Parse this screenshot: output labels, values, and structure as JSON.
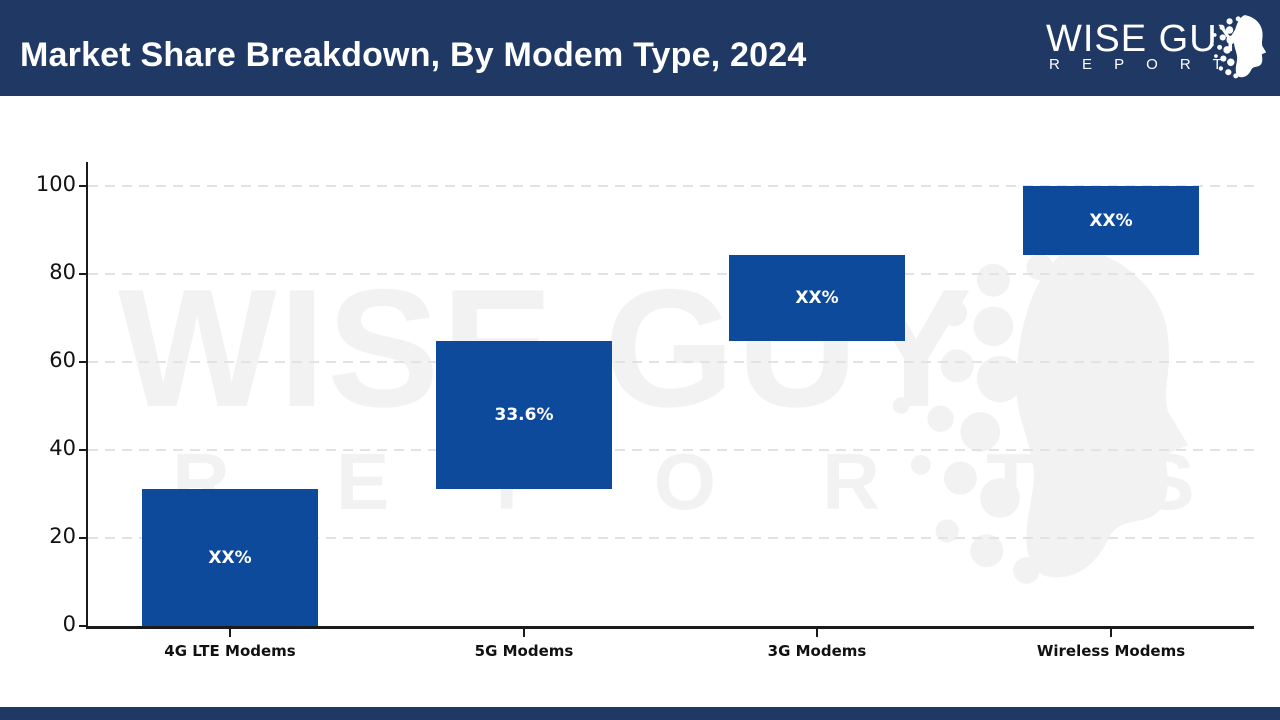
{
  "header": {
    "title": "Market Share Breakdown, By Modem Type, 2024",
    "logo": {
      "name": "WISE GUY",
      "tagline": "R E P O R T S"
    }
  },
  "watermark": {
    "line1": "WISE GUY",
    "line2": "R E P O R T S"
  },
  "colors": {
    "header_bg": "#1f3864",
    "footer_bg": "#1f3864",
    "bar": "#0d4a9c",
    "bar_label": "#ffffff",
    "grid": "#e3e3e3",
    "axis": "#1a1a1a",
    "watermark": "#f2f2f2"
  },
  "chart_data": {
    "type": "bar",
    "variant": "waterfall",
    "title": "Market Share Breakdown, By Modem Type, 2024",
    "categories": [
      "4G LTE Modems",
      "5G Modems",
      "3G Modems",
      "Wireless Modems"
    ],
    "segments": [
      {
        "category": "4G LTE Modems",
        "start": 0,
        "end": 31.1,
        "value": 31.1,
        "label": "XX%"
      },
      {
        "category": "5G Modems",
        "start": 31.1,
        "end": 64.7,
        "value": 33.6,
        "label": "33.6%"
      },
      {
        "category": "3G Modems",
        "start": 64.7,
        "end": 84.3,
        "value": 19.6,
        "label": "XX%"
      },
      {
        "category": "Wireless Modems",
        "start": 84.3,
        "end": 100,
        "value": 15.7,
        "label": "XX%"
      }
    ],
    "yticks": [
      0,
      20,
      40,
      60,
      80,
      100
    ],
    "ylim": [
      0,
      105
    ],
    "xlabel": "",
    "ylabel": "",
    "grid": "horizontal-dashed",
    "legend": "none"
  }
}
